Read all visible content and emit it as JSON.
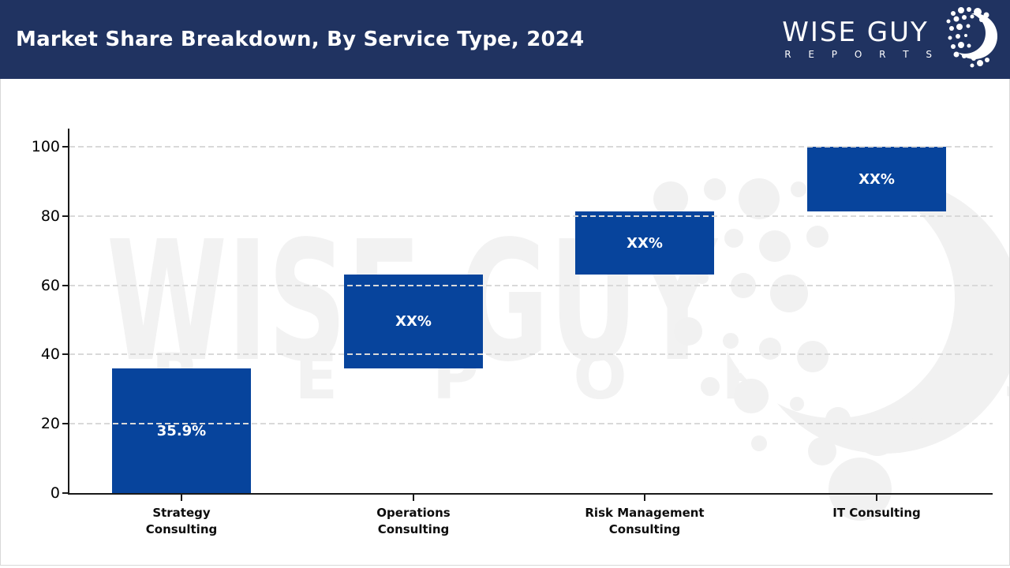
{
  "header": {
    "title": "Market Share Breakdown, By Service Type, 2024",
    "logo": {
      "name": "WISE GUY",
      "sub": "R E P O R T S"
    }
  },
  "watermark": {
    "line1": "WISE GUY",
    "line2": "R E P O R T S"
  },
  "chart_data": {
    "type": "bar",
    "variant": "floating-waterfall",
    "title": "Market Share Breakdown, By Service Type, 2024",
    "categories": [
      "Strategy\nConsulting",
      "Operations\nConsulting",
      "Risk Management\nConsulting",
      "IT Consulting"
    ],
    "bars": [
      {
        "category": "Strategy Consulting",
        "start": 0,
        "end": 35.9,
        "label": "35.9%"
      },
      {
        "category": "Operations Consulting",
        "start": 35.9,
        "end": 63,
        "label": "XX%"
      },
      {
        "category": "Risk Management Consulting",
        "start": 63,
        "end": 81.3,
        "label": "XX%"
      },
      {
        "category": "IT Consulting",
        "start": 81.3,
        "end": 100,
        "label": "XX%"
      }
    ],
    "xlabel": "",
    "ylabel": "",
    "ylim": [
      0,
      100
    ],
    "yticks": [
      0,
      20,
      40,
      60,
      80,
      100
    ],
    "grid": {
      "horizontal": true,
      "style": "dashed"
    },
    "legend": "none",
    "bar_color": "#07449c",
    "value_label_color": "#ffffff"
  },
  "colors": {
    "header_bg": "#203361",
    "bar": "#07449c",
    "gridline": "#d9d9d9",
    "axis": "#1a1a1a",
    "watermark": "#f2f2f2",
    "frame_border": "#d8d8d8"
  }
}
